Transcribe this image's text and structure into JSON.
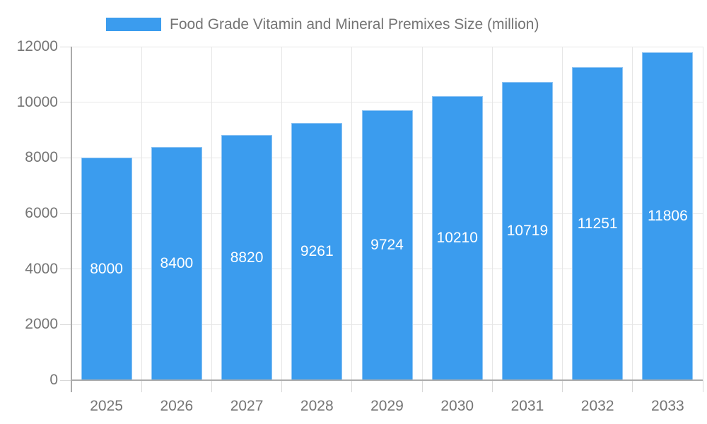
{
  "chart_data": {
    "type": "bar",
    "title": "Food Grade Vitamin and Mineral Premixes Size (million)",
    "legend_position": "top",
    "categories": [
      "2025",
      "2026",
      "2027",
      "2028",
      "2029",
      "2030",
      "2031",
      "2032",
      "2033"
    ],
    "series": [
      {
        "name": "Food Grade Vitamin and Mineral Premixes Size (million)",
        "values": [
          8000,
          8400,
          8820,
          9261,
          9724,
          10210,
          10719,
          11251,
          11806
        ]
      }
    ],
    "xlabel": "",
    "ylabel": "",
    "ylim": [
      0,
      12000
    ],
    "yticks": [
      0,
      2000,
      4000,
      6000,
      8000,
      10000,
      12000
    ],
    "grid": true,
    "bar_value_labels_inside": true,
    "colors": {
      "bar": "#3B9CEE",
      "bar_border": "#8EC4F3",
      "bar_label": "#FFFFFF",
      "axis_text": "#757575",
      "legend_text": "#757575",
      "gridline": "#E6E6E6",
      "tick": "#D8D8D8",
      "axis_line": "#ABABAB",
      "background": "#FFFFFF"
    }
  }
}
